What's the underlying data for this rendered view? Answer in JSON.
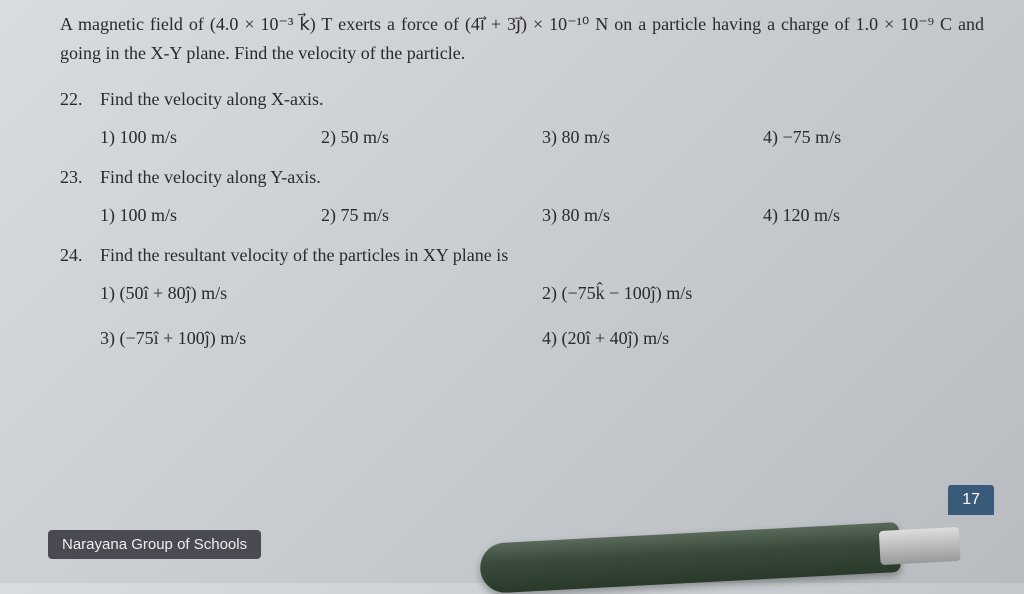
{
  "intro": {
    "line1_a": "A magnetic field of ",
    "line1_b": "(4.0 × 10⁻³ k⃗) T",
    "line1_c": " exerts a force of ",
    "line1_d": "(4i⃗ + 3j⃗) × 10⁻¹⁰ N",
    "line1_e": " on a particle having a charge of ",
    "line1_f": "1.0 × 10⁻⁹ C",
    "line1_g": " and going in the X-Y plane. Find the velocity of the particle."
  },
  "q22": {
    "number": "22.",
    "text": "Find the velocity along X-axis.",
    "opts": [
      "1) 100 m/s",
      "2) 50 m/s",
      "3) 80 m/s",
      "4) −75 m/s"
    ]
  },
  "q23": {
    "number": "23.",
    "text": "Find the velocity along Y-axis.",
    "opts": [
      "1) 100 m/s",
      "2) 75 m/s",
      "3) 80 m/s",
      "4) 120 m/s"
    ]
  },
  "q24": {
    "number": "24.",
    "text": "Find the resultant velocity of the particles in XY plane is",
    "opts": [
      "1) (50î + 80ĵ) m/s",
      "2) (−75k̂ − 100ĵ) m/s",
      "3) (−75î + 100ĵ) m/s",
      "4) (20î + 40ĵ) m/s"
    ]
  },
  "page_number": "17",
  "footer": "Narayana Group of Schools"
}
